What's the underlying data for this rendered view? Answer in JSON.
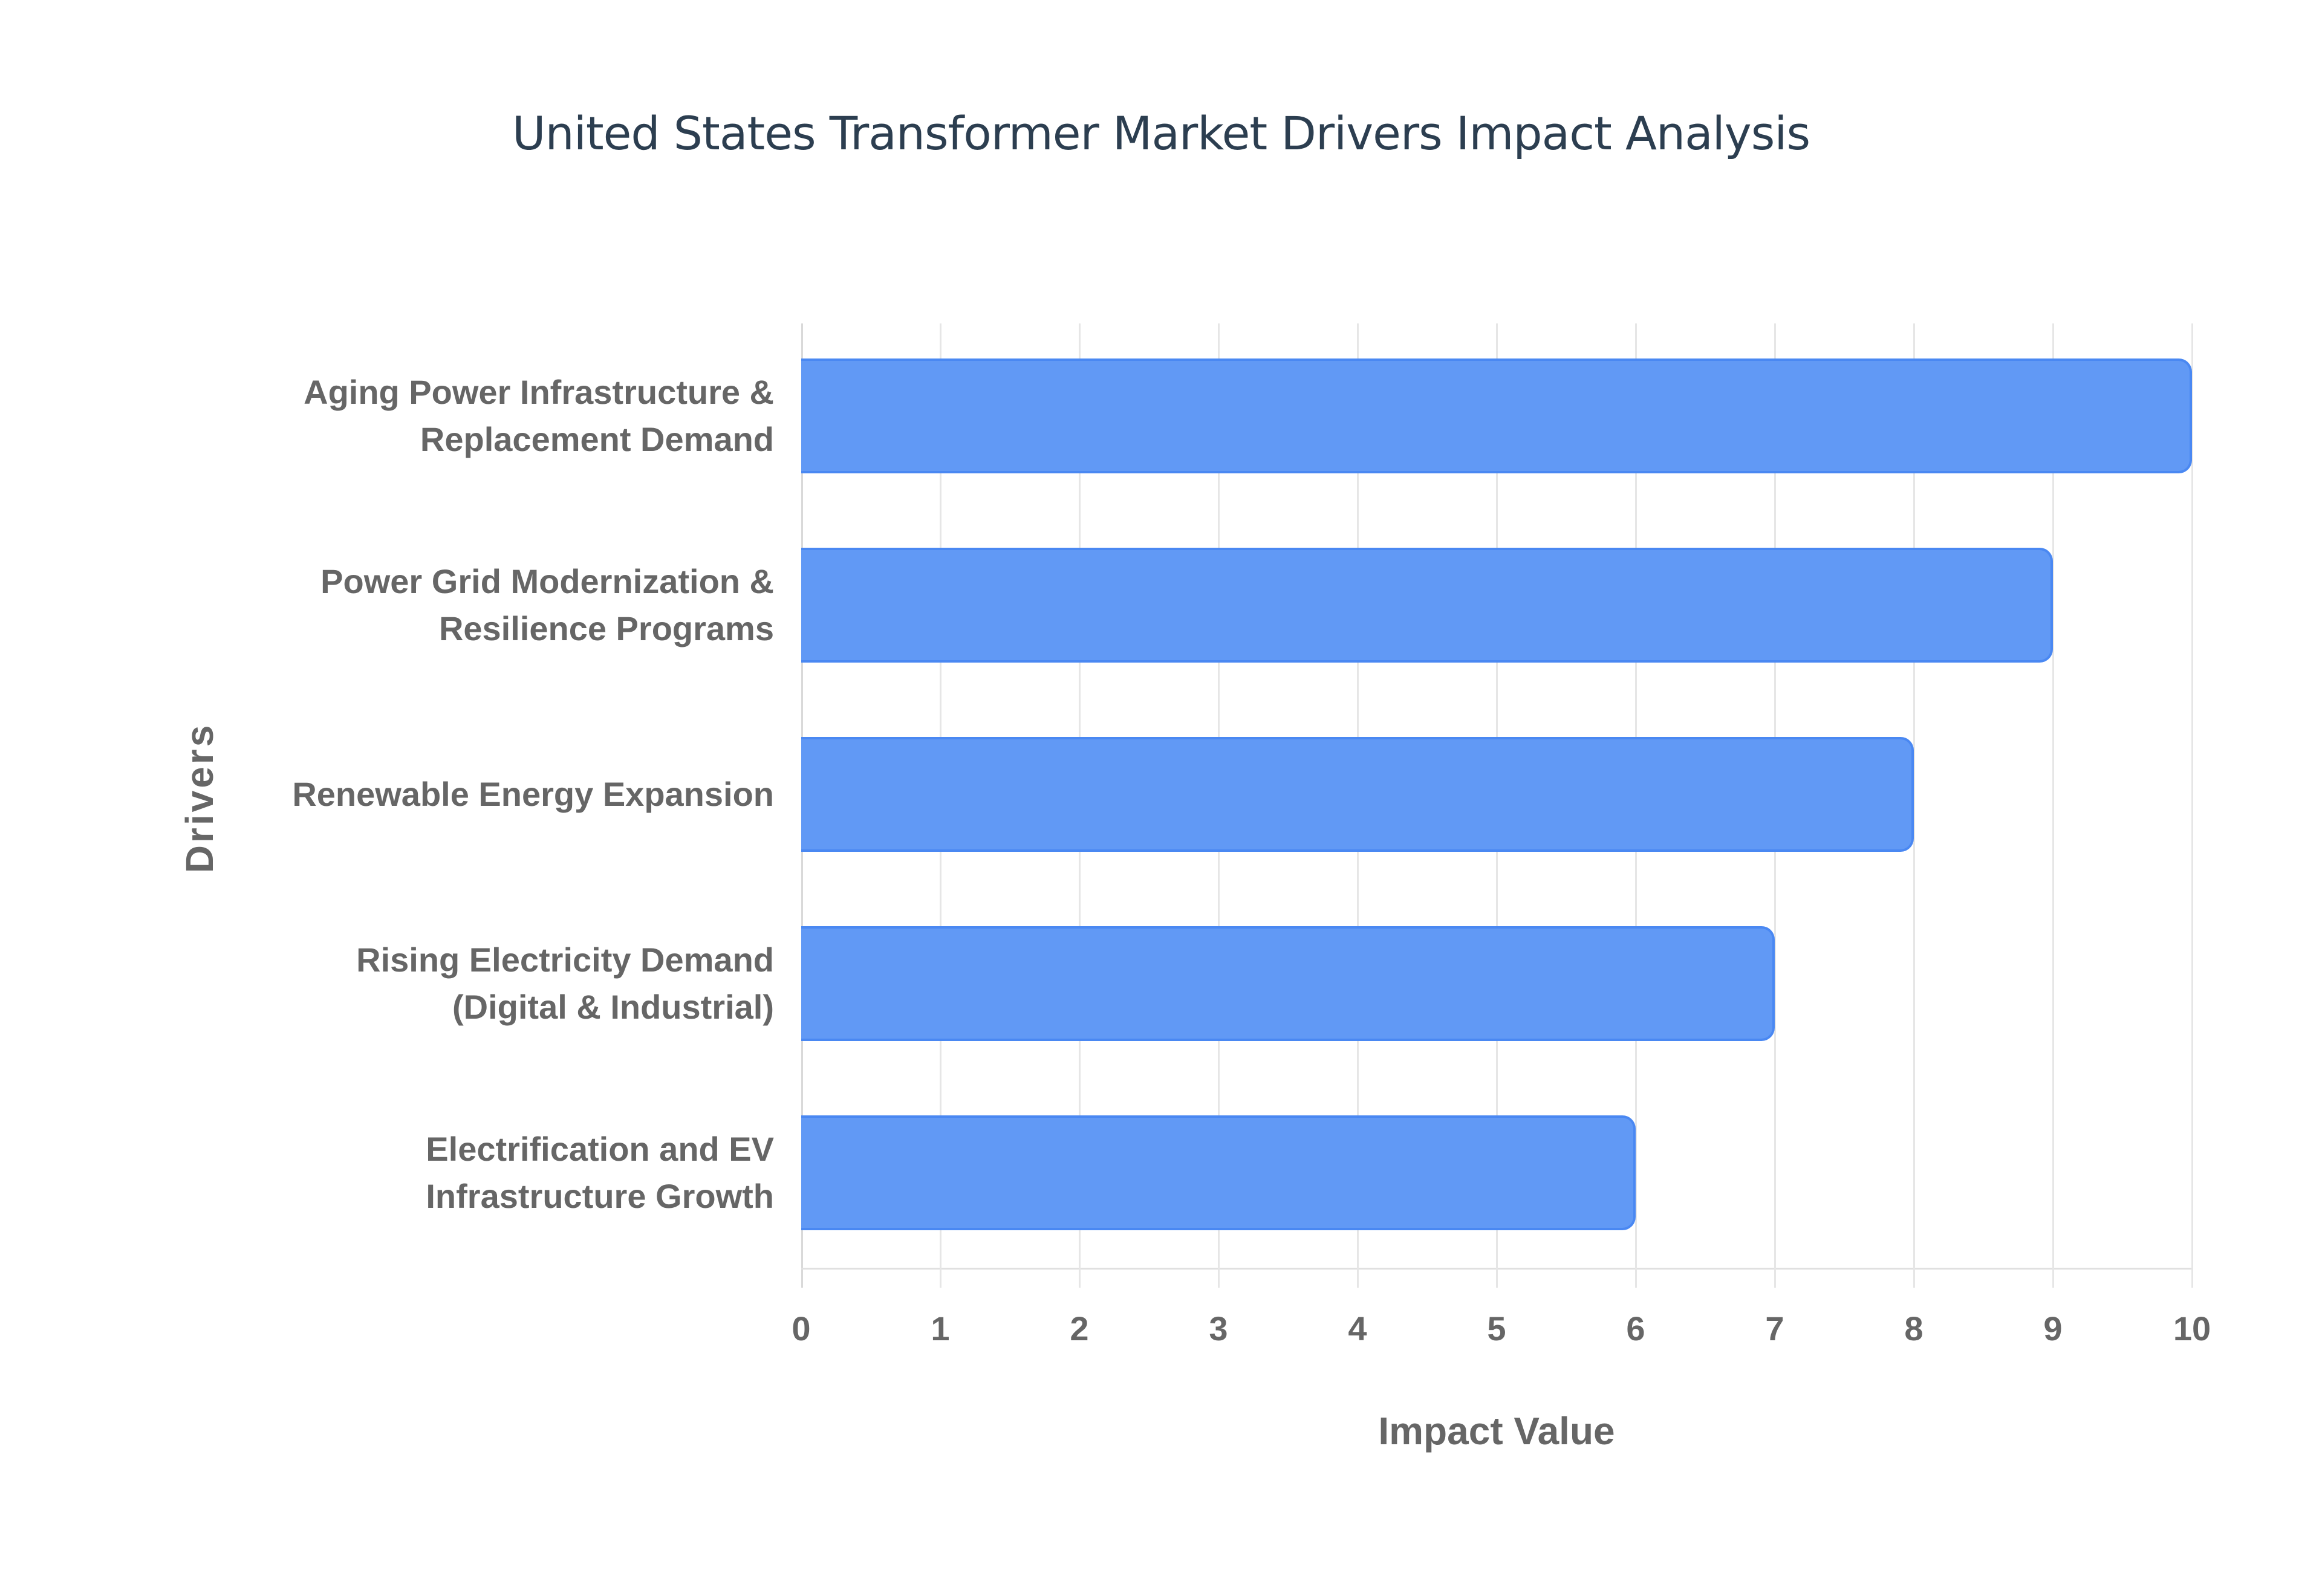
{
  "chart_data": {
    "type": "bar",
    "orientation": "horizontal",
    "title": "United States Transformer Market Drivers Impact Analysis",
    "xlabel": "Impact Value",
    "ylabel": "Drivers",
    "categories": [
      "Aging Power Infrastructure & Replacement Demand",
      "Power Grid Modernization & Resilience Programs",
      "Renewable Energy Expansion",
      "Rising Electricity Demand (Digital & Industrial)",
      "Electrification and EV Infrastructure Growth"
    ],
    "values": [
      10,
      9,
      8,
      7,
      6
    ],
    "xlim": [
      0,
      10
    ],
    "xticks": [
      "0",
      "1",
      "2",
      "3",
      "4",
      "5",
      "6",
      "7",
      "8",
      "9",
      "10"
    ],
    "grid": true,
    "legend": null,
    "bar_color": "#6199f5",
    "bar_border_color": "#4a88f2"
  },
  "labels": [
    {
      "line1": "Aging Power Infrastructure &",
      "line2": "Replacement Demand"
    },
    {
      "line1": "Power Grid Modernization &",
      "line2": "Resilience Programs"
    },
    {
      "line1": "Renewable Energy Expansion",
      "line2": ""
    },
    {
      "line1": "Rising Electricity Demand",
      "line2": "(Digital & Industrial)"
    },
    {
      "line1": "Electrification and EV",
      "line2": "Infrastructure Growth"
    }
  ]
}
